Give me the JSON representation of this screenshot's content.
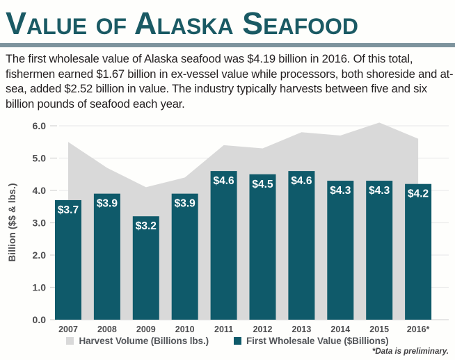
{
  "page": {
    "title": "Value of Alaska Seafood",
    "intro": "The first wholesale value of Alaska seafood was $4.19 billion in 2016. Of this total, fishermen earned $1.67 billion in ex-vessel value while processors, both shoreside and at-sea, added $2.52 billion in value. The industry typically harvests between five and six billion pounds of seafood each year.",
    "footnote": "*Data is preliminary."
  },
  "chart_data": {
    "type": "combo",
    "categories": [
      "2007",
      "2008",
      "2009",
      "2010",
      "2011",
      "2012",
      "2013",
      "2014",
      "2015",
      "2016*"
    ],
    "series": [
      {
        "name": "Harvest Volume (Billions lbs.)",
        "type": "area",
        "values": [
          5.5,
          4.7,
          4.1,
          4.4,
          5.4,
          5.3,
          5.8,
          5.7,
          6.1,
          5.6
        ]
      },
      {
        "name": "First Wholesale Value ($Billions)",
        "type": "bar",
        "values": [
          3.7,
          3.9,
          3.2,
          3.9,
          4.6,
          4.5,
          4.6,
          4.3,
          4.3,
          4.2
        ],
        "bar_labels": [
          "$3.7",
          "$3.9",
          "$3.2",
          "$3.9",
          "$4.6",
          "$4.5",
          "$4.6",
          "$4.3",
          "$4.3",
          "$4.2"
        ]
      }
    ],
    "ylabel": "Billion ($$ & lbs.)",
    "xlabel": "",
    "ylim": [
      0,
      6
    ],
    "yticks": [
      0,
      1,
      2,
      3,
      4,
      5,
      6
    ],
    "ytick_labels": [
      "0.0",
      "1.0",
      "2.0",
      "3.0",
      "4.0",
      "5.0",
      "6.0"
    ],
    "grid": true,
    "legend_position": "bottom"
  },
  "colors": {
    "bar_teal": "#0f5a6a",
    "area_gray": "#d9d9d9",
    "title_teal": "#1a5a64",
    "divider_blue_gray": "#7d939d",
    "gridline": "#ececec",
    "baseline": "#d8d8d8",
    "axis_text": "#4d4d4f",
    "legend_text": "#53565a",
    "body_text": "#231f20"
  }
}
